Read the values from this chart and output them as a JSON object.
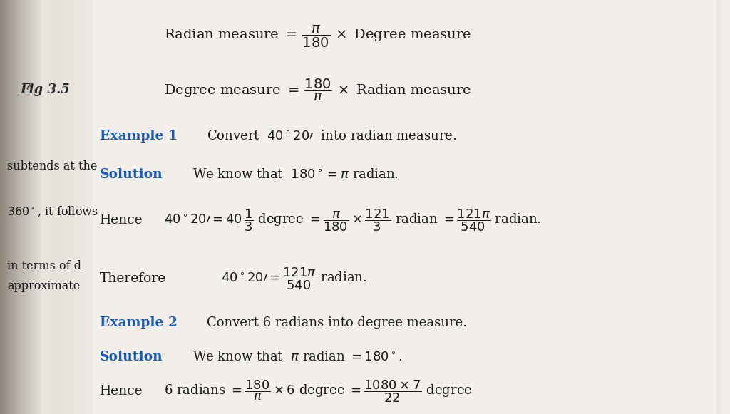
{
  "bg_color": "#e8e4de",
  "page_color": "#f0ede8",
  "text_color": "#1a1a1a",
  "blue_color": "#1a5bb5",
  "fig_label_color": "#2a2a2a",
  "spine_dark": "#7a7060",
  "title1": "Radian measure $= \\dfrac{\\pi}{180} \\times$ Degree measure",
  "title2": "Degree measure $= \\dfrac{180}{\\pi} \\times$ Radian measure",
  "fig35": "Fig 3.5",
  "ex1_label": "Example 1",
  "ex1_text": "  Convert  $40^\\circ 20'$  into radian measure.",
  "sol1_label": "Solution",
  "sol1_text": "  We know that  $180^\\circ = \\pi$ radian.",
  "left1a": "subtends at the",
  "left1b": "$360^\\circ$, it follows",
  "hence1_label": "Hence",
  "hence1_math": "$40^\\circ 20' = 40\\dfrac{1}{3}$ degree $= \\dfrac{\\pi}{180} \\times \\dfrac{121}{3}$ radian $= \\dfrac{121\\pi}{540}$ radian.",
  "left2a": "in terms of d",
  "left2b": "approximate",
  "there1_label": "Therefore",
  "there1_math": "$40^\\circ 20' = \\dfrac{121\\pi}{540}$ radian.",
  "ex2_label": "Example 2",
  "ex2_text": "  Convert 6 radians into degree measure.",
  "sol2_label": "Solution",
  "sol2_text": "  We know that  $\\pi$ radian $= 180^\\circ$.",
  "hence2_label": "Hence",
  "hence2_math": "6 radians $= \\dfrac{180}{\\pi} \\times 6$ degree $= \\dfrac{1080 \\times 7}{22}$ degree"
}
